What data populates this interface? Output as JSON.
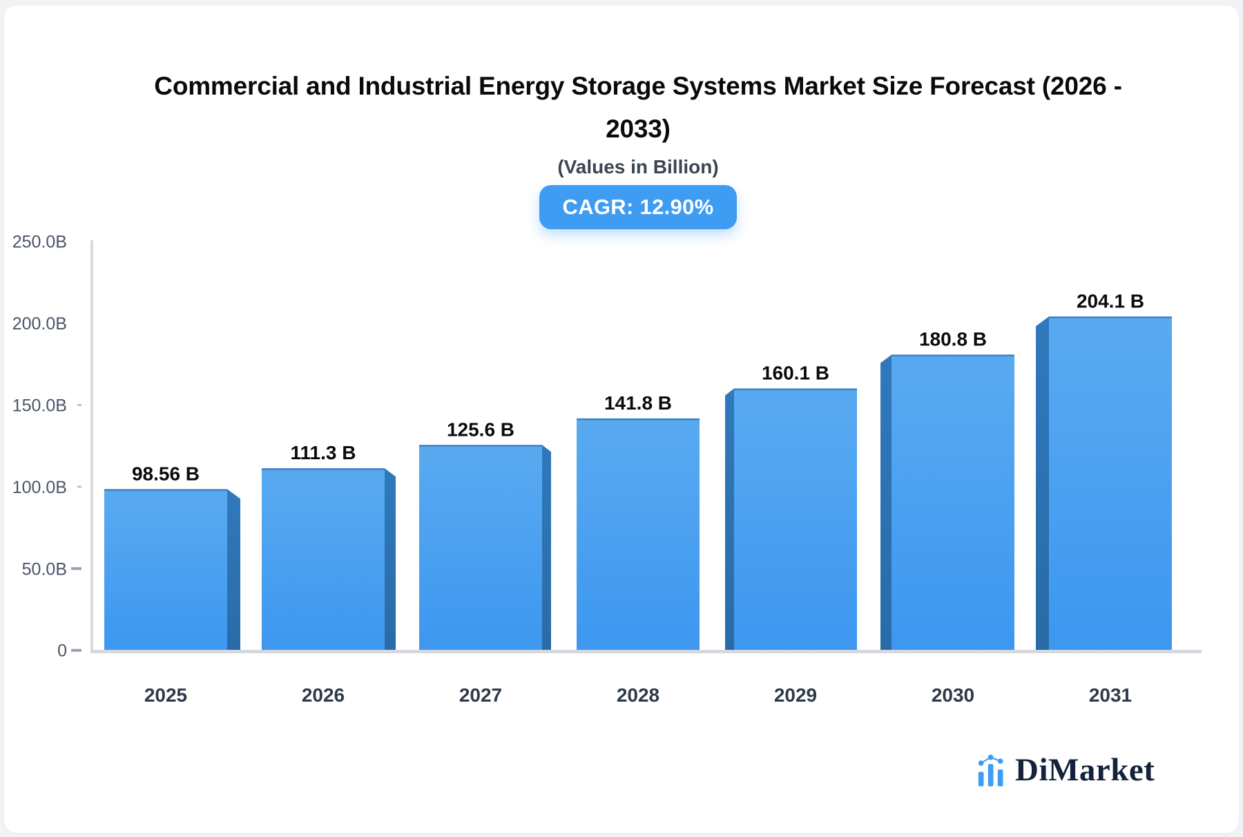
{
  "page": {
    "background": "#f3f3f5",
    "card_background": "#ffffff"
  },
  "header": {
    "title": "Commercial and Industrial Energy Storage Systems Market Size Forecast (2026 - 2033)",
    "title_lines": [
      "Commercial and Industrial Energy Storage Systems Market Size Forecast (2026 -",
      "2033)"
    ],
    "subtitle": "(Values in Billion)",
    "cagr_label": "CAGR: 12.90%"
  },
  "chart_data": {
    "type": "bar",
    "title": "Commercial and Industrial Energy Storage Systems Market Size Forecast (2026 - 2033)",
    "subtitle_note": "(Values in Billion)",
    "cagr": "12.90%",
    "categories": [
      "2025",
      "2026",
      "2027",
      "2028",
      "2029",
      "2030",
      "2031"
    ],
    "values": [
      98.56,
      111.3,
      125.6,
      141.8,
      160.1,
      180.8,
      204.1
    ],
    "value_labels": [
      "98.56 B",
      "111.3 B",
      "125.6 B",
      "141.8 B",
      "160.1 B",
      "180.8 B",
      "204.1 B"
    ],
    "xlabel": "",
    "ylabel": "",
    "ylim": [
      0,
      250
    ],
    "yticks": [
      {
        "value": 250,
        "label": "250.0B"
      },
      {
        "value": 200,
        "label": "200.0B"
      },
      {
        "value": 150,
        "label": "150.0B"
      },
      {
        "value": 100,
        "label": "100.0B"
      },
      {
        "value": 50,
        "label": "50.0B"
      },
      {
        "value": 0,
        "label": "0"
      }
    ],
    "grid": false,
    "legend": false,
    "colors": {
      "bar_front_top": "#59aaf0",
      "bar_front_bottom": "#3d97f0",
      "bar_top_edge": "#3c80c6",
      "bar_side": "#2c70af",
      "axis": "#d9dbe1",
      "baseline": "#d6d8df",
      "tick_dash_strong": "#99a1ad",
      "tick_dash_light": "#bcc2cb",
      "ytick_text": "#4a5568",
      "xtick_text": "#2f3a49",
      "value_text": "#0a0b0d",
      "badge_bg": "#3e9cf2",
      "badge_text": "#ffffff",
      "logo_blue": "#3e9cf5",
      "logo_navy": "#15223b"
    }
  },
  "footer": {
    "brand": "DiMarket"
  }
}
